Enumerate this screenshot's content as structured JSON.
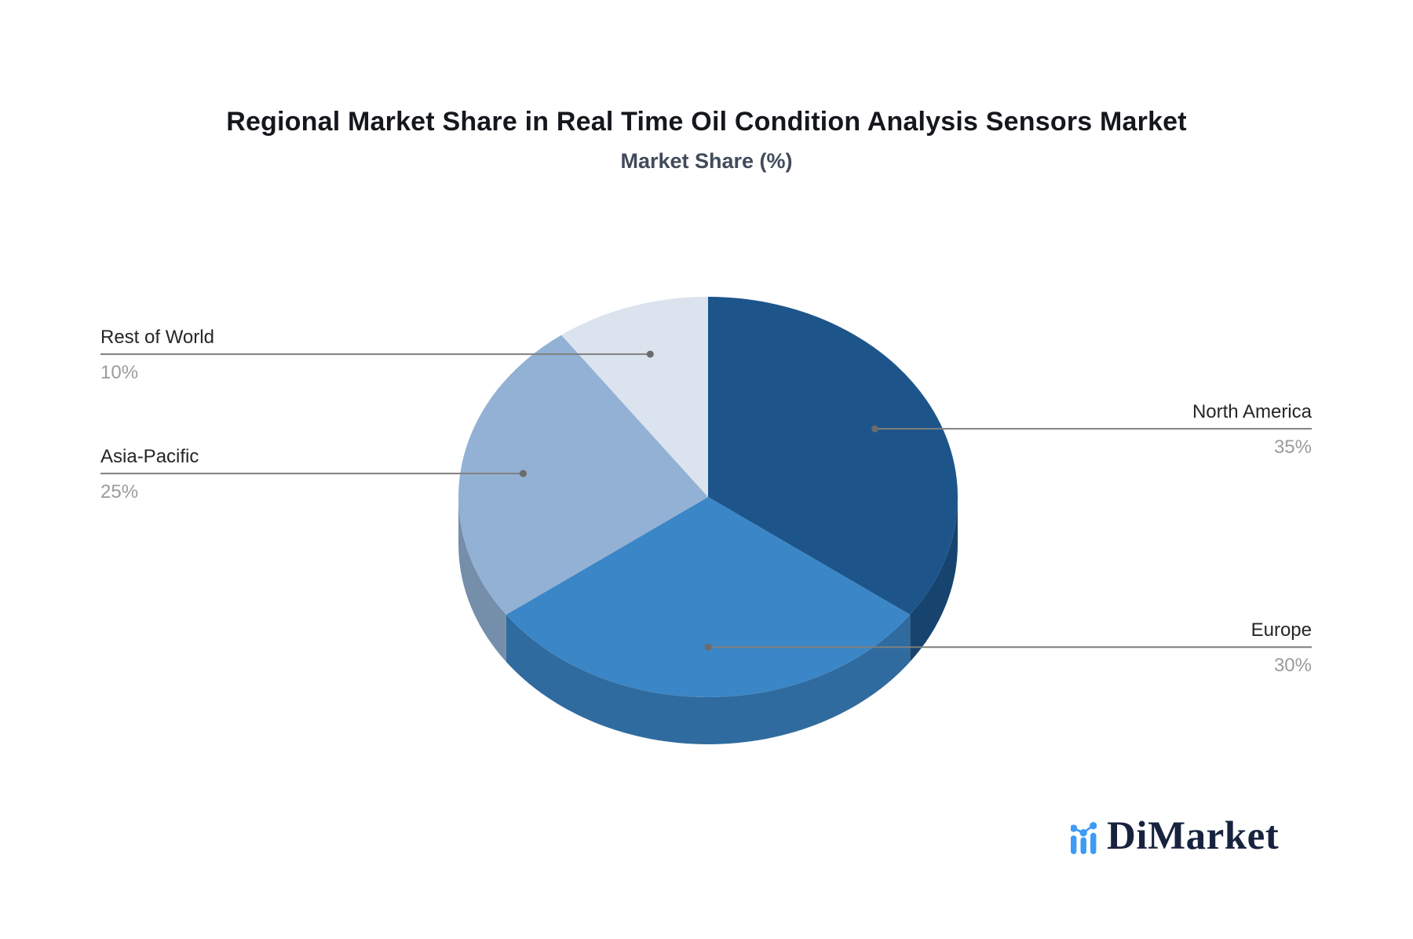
{
  "title": "Regional Market Share in Real Time Oil Condition Analysis Sensors Market",
  "subtitle": "Market Share (%)",
  "logo": {
    "text": "DiMarket"
  },
  "colors": {
    "background": "#FFFFFF",
    "title_color": "#14171C",
    "subtitle_color": "#414B5A",
    "label_color": "#262626",
    "pct_color": "#9B9B9B",
    "leader_line": "#7F7F7F",
    "leader_dot": "#6B6B6B",
    "logo_blue": "#3D9BF6",
    "logo_navy": "#17233E"
  },
  "chart_data": {
    "type": "pie",
    "title": "Regional Market Share in Real Time Oil Condition Analysis Sensors Market",
    "subtitle": "Market Share (%)",
    "unit": "%",
    "style": "3d-pie",
    "start_angle": "12-oclock",
    "direction": "clockwise",
    "legend_position": "callout-labels",
    "slices": [
      {
        "label": "North America",
        "value": 35,
        "display": "35%",
        "color": "#1D558B",
        "label_side": "right"
      },
      {
        "label": "Europe",
        "value": 30,
        "display": "30%",
        "color": "#3B86C6",
        "label_side": "right"
      },
      {
        "label": "Asia-Pacific",
        "value": 25,
        "display": "25%",
        "color": "#92B1D4",
        "label_side": "left"
      },
      {
        "label": "Rest of World",
        "value": 10,
        "display": "10%",
        "color": "#DBE3EE",
        "label_side": "left"
      }
    ]
  }
}
